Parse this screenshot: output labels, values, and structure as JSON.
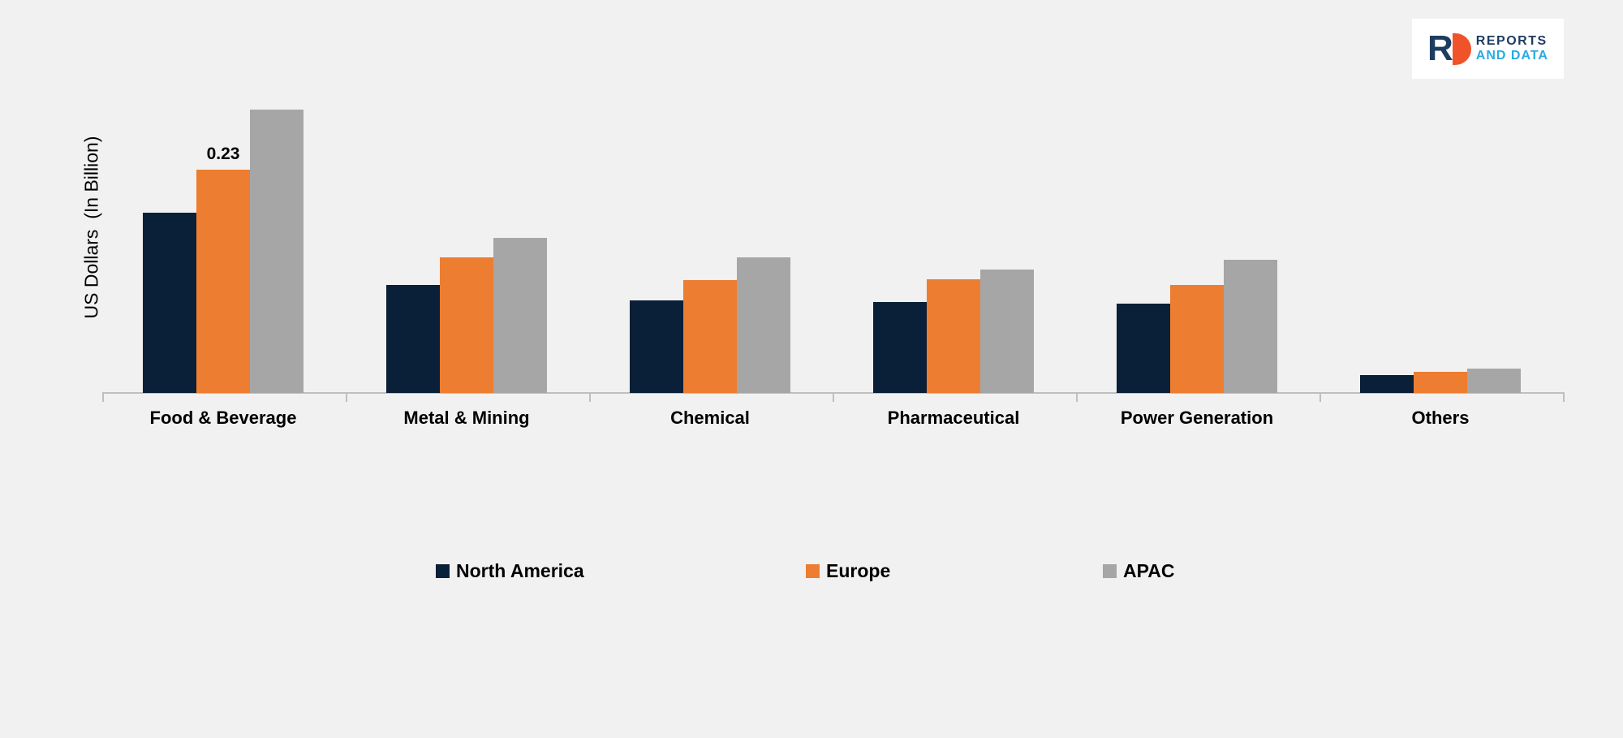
{
  "page": {
    "background": "#f1f1f1",
    "text_color": "#000000",
    "axis_color": "#bfbfbf"
  },
  "logo": {
    "mark_r": "R",
    "line1": "REPORTS",
    "line2": "AND DATA",
    "navy": "#1e3c5f",
    "orange": "#f0532a",
    "light_blue": "#29abe2"
  },
  "chart_data": {
    "type": "bar",
    "title": "",
    "xlabel": "",
    "ylabel": "US Dollars  (In Billion)",
    "ylim": [
      0,
      0.32
    ],
    "grid": false,
    "legend_position": "bottom",
    "categories": [
      "Food & Beverage",
      "Metal & Mining",
      "Chemical",
      "Pharmaceutical",
      "Power Generation",
      "Others"
    ],
    "series": [
      {
        "name": "North America",
        "color": "#0a1f38",
        "values": [
          0.186,
          0.111,
          0.095,
          0.094,
          0.092,
          0.018
        ]
      },
      {
        "name": "Europe",
        "color": "#ed7d31",
        "values": [
          0.23,
          0.14,
          0.116,
          0.117,
          0.111,
          0.022
        ]
      },
      {
        "name": "APAC",
        "color": "#a6a6a6",
        "values": [
          0.292,
          0.16,
          0.14,
          0.127,
          0.137,
          0.025
        ]
      }
    ],
    "data_labels": [
      {
        "series_index": 1,
        "category_index": 0,
        "text": "0.23"
      }
    ]
  }
}
